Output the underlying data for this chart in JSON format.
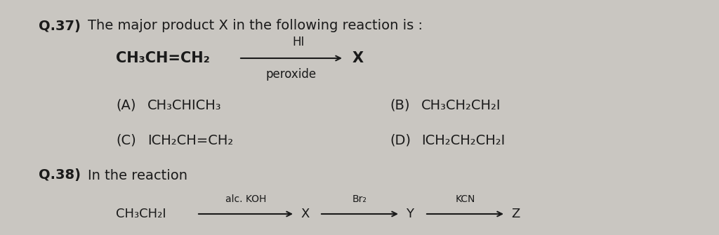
{
  "bg_color": "#c9c6c1",
  "text_color": "#1a1a1a",
  "q37_label": "Q.37)",
  "q37_text": "The major product X in the following reaction is :",
  "reaction_left": "CH₃CH=CH₂",
  "reaction_above": "HI",
  "reaction_below": "peroxide",
  "reaction_right": "X",
  "optA_label": "(A)",
  "optA_text": "CH₃CHICH₃",
  "optB_label": "(B)",
  "optB_text": "CH₃CH₂CH₂I",
  "optC_label": "(C)",
  "optC_text": "ICH₂CH=CH₂",
  "optD_label": "(D)",
  "optD_text": "ICH₂CH₂CH₂I",
  "q38_label": "Q.38)",
  "q38_text": "In the reaction",
  "reaction2_left": "CH₃CH₂I",
  "reaction2_label1": "alc. KOH",
  "reaction2_x": "X",
  "reaction2_label2": "Br₂",
  "reaction2_y": "Y",
  "reaction2_label3": "KCN",
  "reaction2_z": "Z"
}
